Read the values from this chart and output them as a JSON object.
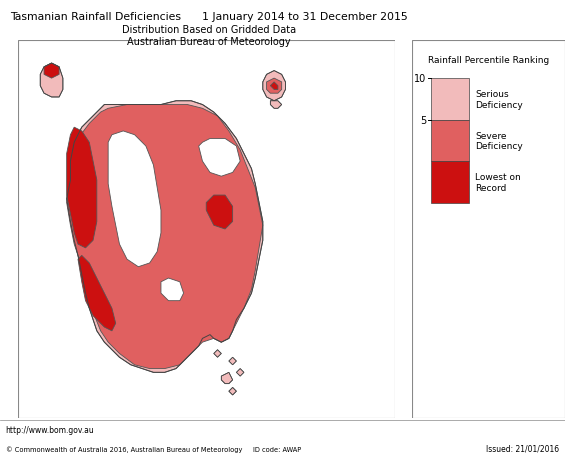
{
  "title_main": "Tasmanian Rainfall Deficiencies      1 January 2014 to 31 December 2015",
  "title_sub1": "Distribution Based on Gridded Data",
  "title_sub2": "Australian Bureau of Meteorology",
  "legend_title": "Rainfall Percentile Ranking",
  "colors": {
    "serious": "#F2BBBB",
    "severe": "#E06060",
    "lowest": "#CC1010",
    "white": "#FFFFFF",
    "background": "#FFFFFF",
    "border": "#666666"
  },
  "footer_left": "http://www.bom.gov.au",
  "footer_copy": "© Commonwealth of Australia 2016, Australian Bureau of Meteorology     ID code: AWAP",
  "footer_right": "Issued: 21/01/2016",
  "fig_width": 5.65,
  "fig_height": 4.6,
  "dpi": 100
}
